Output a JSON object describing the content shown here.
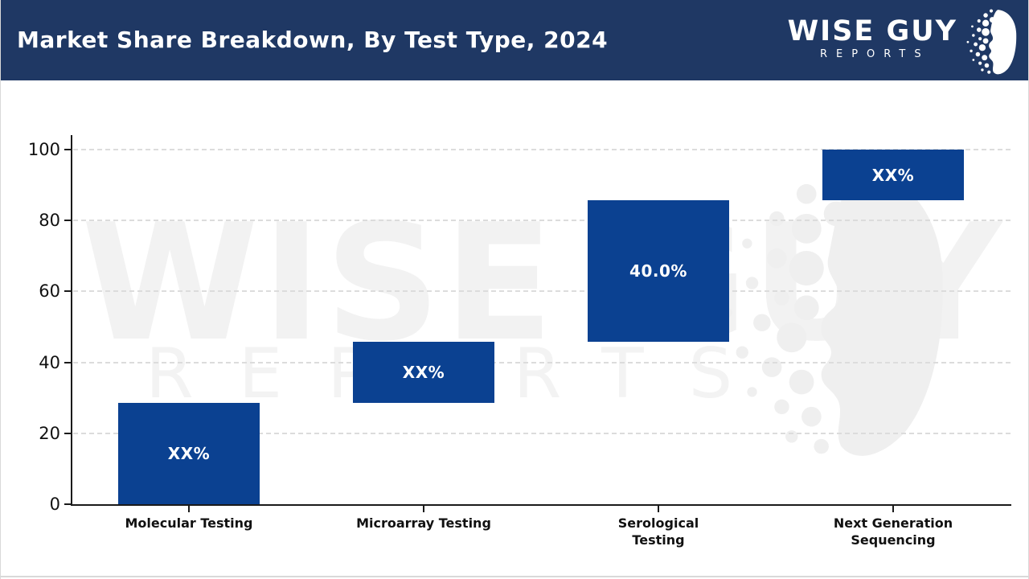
{
  "header": {
    "title": "Market Share Breakdown, By Test Type, 2024",
    "logo": {
      "name_line": "WISE GUY",
      "sub_line": "REPORTS"
    }
  },
  "watermark": {
    "name_line": "WISE GUY",
    "sub_line": "REPORTS"
  },
  "chart_data": {
    "type": "bar",
    "subtype": "floating-segment-waterfall",
    "title": "Market Share Breakdown, By Test Type, 2024",
    "categories": [
      "Molecular Testing",
      "Microarray Testing",
      "Serological Testing",
      "Next Generation Sequencing"
    ],
    "category_label_lines": [
      [
        "Molecular Testing"
      ],
      [
        "Microarray Testing"
      ],
      [
        "Serological",
        "Testing"
      ],
      [
        "Next Generation",
        "Sequencing"
      ]
    ],
    "segments": [
      {
        "category": "Molecular Testing",
        "start": 0,
        "end": 28.6,
        "label": "XX%"
      },
      {
        "category": "Microarray Testing",
        "start": 28.6,
        "end": 45.7,
        "label": "XX%"
      },
      {
        "category": "Serological Testing",
        "start": 45.7,
        "end": 85.7,
        "label": "40.0%"
      },
      {
        "category": "Next Generation Sequencing",
        "start": 85.7,
        "end": 100,
        "label": "XX%"
      }
    ],
    "ylim": [
      0,
      100
    ],
    "yticks": [
      0,
      20,
      40,
      60,
      80,
      100
    ],
    "xlabel": "",
    "ylabel": "",
    "legend": "none",
    "grid": {
      "horizontal": true,
      "style": "dashed"
    },
    "colors": {
      "bar": "#0B4191",
      "bar_label": "#ffffff",
      "axis": "#1a1a1a",
      "gridline": "#dcdcdc",
      "header_bg": "#1F3864",
      "watermark": "#f2f2f2"
    }
  }
}
